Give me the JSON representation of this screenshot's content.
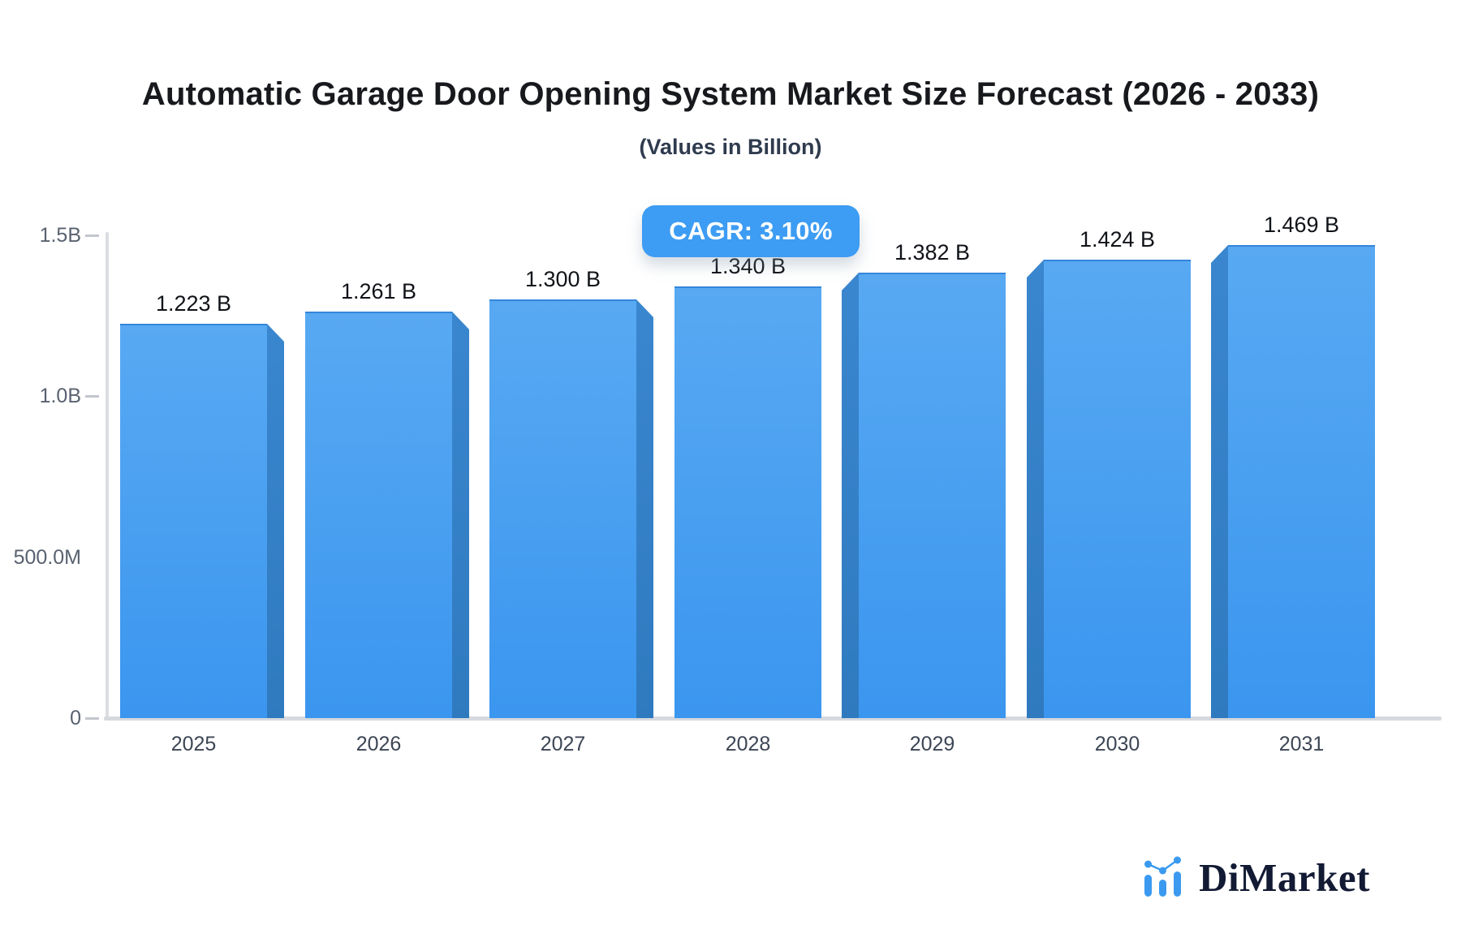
{
  "header": {
    "title": "Automatic Garage Door Opening System Market Size Forecast (2026 - 2033)",
    "subtitle": "(Values in Billion)"
  },
  "logo": {
    "text": "DiMarket",
    "icon": "mini-bar-chart-icon",
    "icon_color": "#3b9af0",
    "text_color": "#121a34"
  },
  "chart_data": {
    "type": "bar",
    "title": "Automatic Garage Door Opening System Market Size Forecast (2026 - 2033)",
    "subtitle": "(Values in Billion)",
    "categories": [
      "2025",
      "2026",
      "2027",
      "2028",
      "2029",
      "2030",
      "2031"
    ],
    "values": [
      1.223,
      1.261,
      1.3,
      1.34,
      1.382,
      1.424,
      1.469
    ],
    "value_labels": [
      "1.223 B",
      "1.261 B",
      "1.300 B",
      "1.340 B",
      "1.382 B",
      "1.424 B",
      "1.469 B"
    ],
    "unit": "Billion",
    "ylabel": "",
    "xlabel": "",
    "ylim": [
      0,
      1.5
    ],
    "yticks": [
      {
        "label": "0",
        "value": 0,
        "dash": true
      },
      {
        "label": "500.0M",
        "value": 0.5,
        "dash": false
      },
      {
        "label": "1.0B",
        "value": 1.0,
        "dash": true
      },
      {
        "label": "1.5B",
        "value": 1.5,
        "dash": true
      }
    ],
    "grid": "off",
    "legend": "none",
    "annotation": "CAGR: 3.10%",
    "annotation_bg": "#3d9cf3",
    "bar_colors": {
      "front_top": "#58a9f2",
      "front_bottom": "#3b96ef",
      "side": "#2f7abf",
      "side_top": "#3a86cf"
    }
  }
}
